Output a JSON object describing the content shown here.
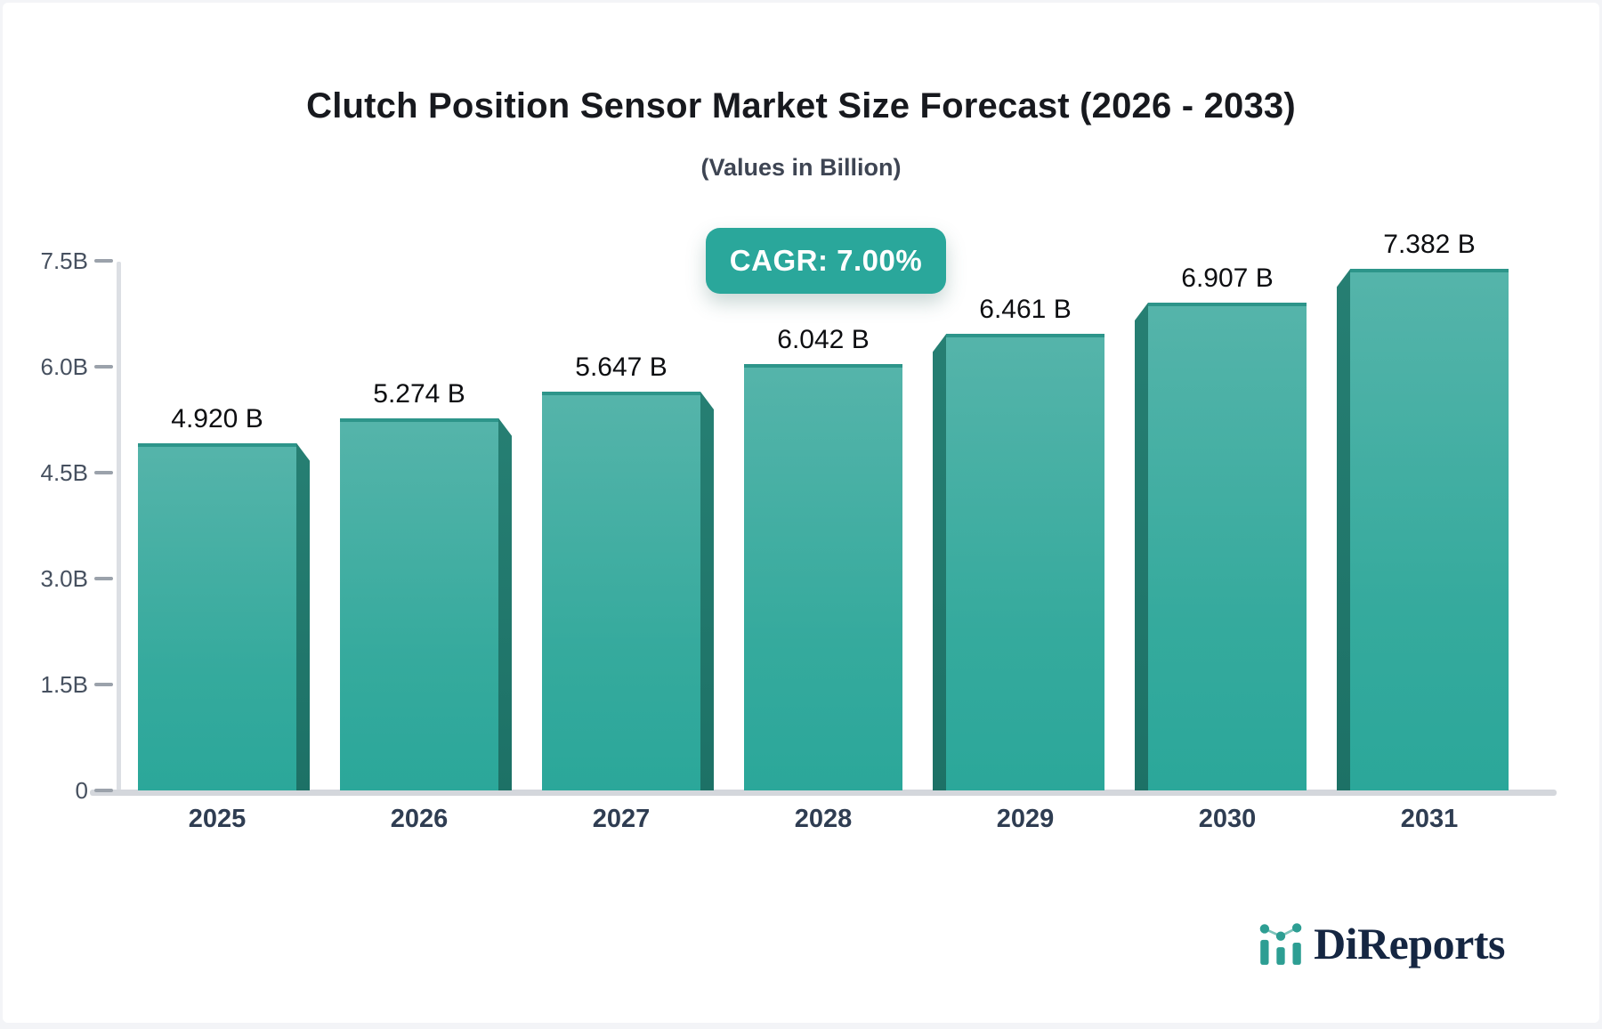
{
  "page": {
    "title": "Clutch Position Sensor Market Size Forecast (2026 - 2033)",
    "subtitle": "(Values in Billion)"
  },
  "badge": {
    "label": "CAGR: 7.00%"
  },
  "chart_data": {
    "type": "bar",
    "title": "Clutch Position Sensor Market Size Forecast (2026 - 2033)",
    "subtitle": "(Values in Billion)",
    "cagr_label": "CAGR: 7.00%",
    "categories": [
      "2025",
      "2026",
      "2027",
      "2028",
      "2029",
      "2030",
      "2031"
    ],
    "values": [
      4.92,
      5.274,
      5.647,
      6.042,
      6.461,
      6.907,
      7.382
    ],
    "value_labels": [
      "4.920 B",
      "5.274 B",
      "5.647 B",
      "6.042 B",
      "6.461 B",
      "6.907 B",
      "7.382 B"
    ],
    "ylabel": "",
    "xlabel": "",
    "ylim": [
      0,
      7.5
    ],
    "ytick_values": [
      0,
      1.5,
      3.0,
      4.5,
      6.0,
      7.5
    ],
    "ytick_labels": [
      "0",
      "1.5B",
      "3.0B",
      "4.5B",
      "6.0B",
      "7.5B"
    ],
    "grid": false,
    "legend": false,
    "colors": {
      "bar_face_top": "#55b4aa",
      "bar_face_bottom": "#2ba79a",
      "bar_side": "#217a6e",
      "bar_top_edge": "#2d958a",
      "badge_background": "#2aa79b",
      "badge_text": "#ffffff",
      "axis_line": "#dcdfe4",
      "baseline": "#d4d7dc",
      "tick_text": "#46505f",
      "category_text": "#2f3d52",
      "value_text": "#0d0e11"
    }
  },
  "logo": {
    "text": "DiReports",
    "icon": "bar-line-chart-icon",
    "icon_color": "#2d9e93",
    "text_color": "#152642"
  }
}
